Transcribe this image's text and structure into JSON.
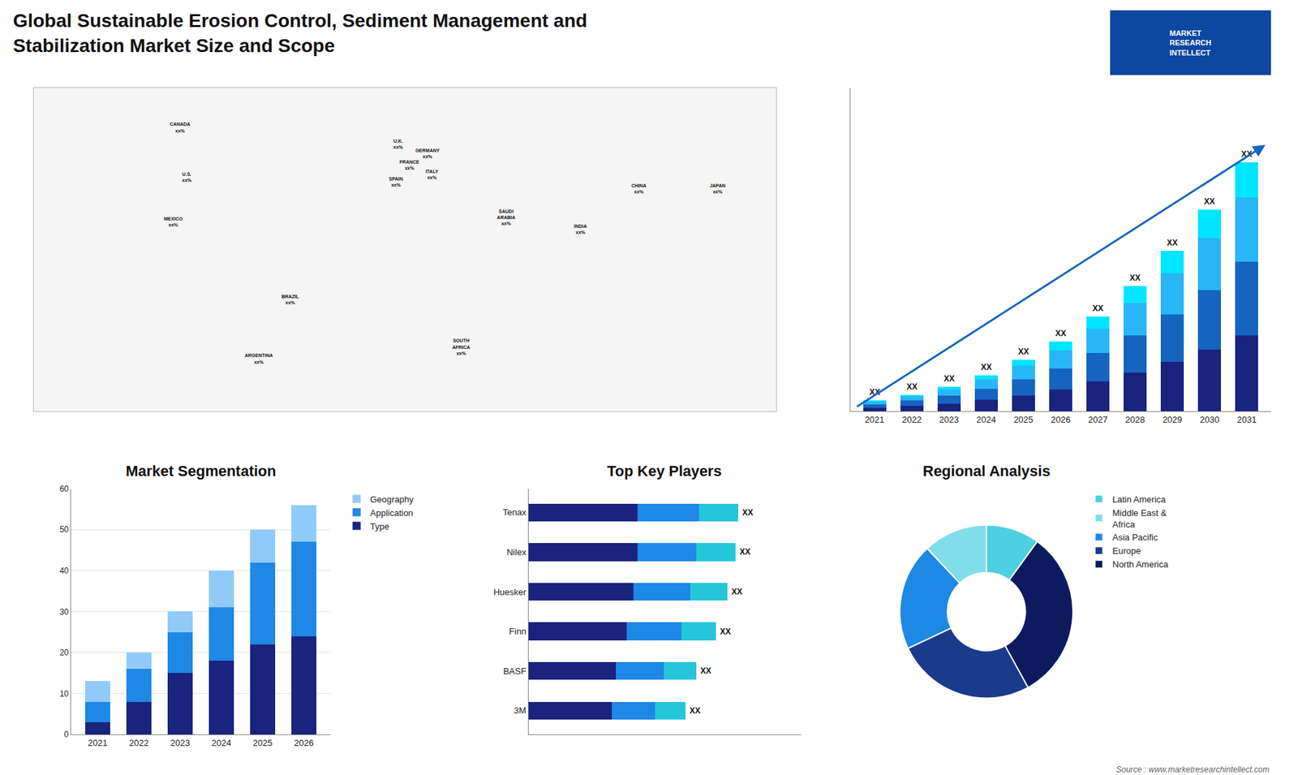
{
  "title": "Global Sustainable Erosion Control, Sediment Management and\nStabilization Market Size and Scope",
  "annotations": [
    {
      "text": "MARKET\nRESEARCH\nINTELLECT"
    },
    {
      "text": "Source : www.marketresearchintellect.com"
    }
  ],
  "chart_data": [
    {
      "type": "map",
      "xlim": [
        -165,
        165
      ],
      "ylim": [
        -57,
        80
      ],
      "xticks": [],
      "yticks": [],
      "tick_labels": false,
      "grid": false,
      "annotations": [
        {
          "text": "CANADA\nxx%",
          "x": -100,
          "y": 63
        },
        {
          "text": "U.S.\nxx%",
          "x": -97,
          "y": 42
        },
        {
          "text": "MEXICO\nxx%",
          "x": -103,
          "y": 23
        },
        {
          "text": "BRAZIL\nxx%",
          "x": -51,
          "y": -10
        },
        {
          "text": "ARGENTINA\nxx%",
          "x": -65,
          "y": -35
        },
        {
          "text": "U.K.\nxx%",
          "x": -3,
          "y": 56
        },
        {
          "text": "FRANCE\nxx%",
          "x": 2,
          "y": 47
        },
        {
          "text": "SPAIN\nxx%",
          "x": -4,
          "y": 40
        },
        {
          "text": "GERMANY\nxx%",
          "x": 10,
          "y": 52
        },
        {
          "text": "ITALY\nxx%",
          "x": 12,
          "y": 43
        },
        {
          "text": "SAUDI\nARABIA\nxx%",
          "x": 45,
          "y": 25
        },
        {
          "text": "SOUTH\nAFRICA\nxx%",
          "x": 25,
          "y": -30
        },
        {
          "text": "CHINA\nxx%",
          "x": 104,
          "y": 37
        },
        {
          "text": "INDIA\nxx%",
          "x": 78,
          "y": 20
        },
        {
          "text": "JAPAN\nxx%",
          "x": 139,
          "y": 37
        }
      ]
    },
    {
      "type": "bar",
      "stacked": true,
      "categories": [
        "2021",
        "2022",
        "2023",
        "2024",
        "2025",
        "2026",
        "2027",
        "2028",
        "2029",
        "2030",
        "2031"
      ],
      "series": [
        {
          "color": "#1a237e",
          "values": [
            1.0,
            1.5,
            2.2,
            3.2,
            4.5,
            6.2,
            8.5,
            11.0,
            14.0,
            17.5,
            21.5
          ]
        },
        {
          "color": "#1565c0",
          "values": [
            1.0,
            1.5,
            2.2,
            3.2,
            4.5,
            6.0,
            8.0,
            10.5,
            13.5,
            17.0,
            21.0
          ]
        },
        {
          "color": "#29b6f6",
          "values": [
            0.8,
            1.2,
            1.8,
            2.6,
            3.8,
            5.2,
            7.0,
            9.2,
            11.8,
            14.8,
            18.2
          ]
        },
        {
          "color": "#00e5ff",
          "values": [
            0.3,
            0.5,
            0.8,
            1.2,
            1.8,
            2.5,
            3.5,
            4.8,
            6.2,
            8.0,
            10.0
          ]
        }
      ],
      "ylim": [
        0,
        91.91
      ],
      "yticks": [],
      "tick_labels": "x",
      "grid": false,
      "annotations": [
        {
          "x": "2021",
          "text": "XX"
        },
        {
          "x": "2022",
          "text": "XX"
        },
        {
          "x": "2023",
          "text": "XX"
        },
        {
          "x": "2024",
          "text": "XX"
        },
        {
          "x": "2025",
          "text": "XX"
        },
        {
          "x": "2026",
          "text": "XX"
        },
        {
          "x": "2027",
          "text": "XX"
        },
        {
          "x": "2028",
          "text": "XX"
        },
        {
          "x": "2029",
          "text": "XX"
        },
        {
          "x": "2030",
          "text": "XX"
        },
        {
          "x": "2031",
          "text": "XX"
        }
      ]
    },
    {
      "type": "bar",
      "title": "Market Segmentation",
      "stacked": true,
      "categories": [
        "2021",
        "2022",
        "2023",
        "2024",
        "2025",
        "2026"
      ],
      "series": [
        {
          "name": "Type",
          "color": "#1a237e",
          "values": [
            3,
            8,
            15,
            18,
            22,
            24
          ]
        },
        {
          "name": "Application",
          "color": "#1e88e5",
          "values": [
            5,
            8,
            10,
            13,
            20,
            23
          ]
        },
        {
          "name": "Geography",
          "color": "#90caf9",
          "values": [
            5,
            4,
            5,
            9,
            8,
            9
          ]
        }
      ],
      "ylim": [
        0,
        60
      ],
      "yticks": [
        0,
        10,
        20,
        30,
        40,
        50,
        60
      ],
      "grid": true,
      "legend": "right"
    },
    {
      "type": "bar",
      "title": "Top Key Players",
      "orientation": "horizontal",
      "stacked": true,
      "categories": [
        "Tenax",
        "Nilex",
        "Huesker",
        "Finn",
        "BASF",
        "3M"
      ],
      "series": [
        {
          "color": "#1a237e",
          "values": [
            0.5,
            0.5,
            0.48,
            0.45,
            0.4,
            0.38
          ]
        },
        {
          "color": "#1e88e5",
          "values": [
            0.28,
            0.27,
            0.26,
            0.25,
            0.22,
            0.2
          ]
        },
        {
          "color": "#26c6da",
          "values": [
            0.18,
            0.18,
            0.17,
            0.16,
            0.15,
            0.14
          ]
        }
      ],
      "xlim": [
        0,
        1.248
      ],
      "xticks": [],
      "tick_labels": "y",
      "grid": false,
      "annotations": [
        {
          "x": "Tenax",
          "text": "XX"
        },
        {
          "x": "Nilex",
          "text": "XX"
        },
        {
          "x": "Huesker",
          "text": "XX"
        },
        {
          "x": "Finn",
          "text": "XX"
        },
        {
          "x": "BASF",
          "text": "XX"
        },
        {
          "x": "3M",
          "text": "XX"
        }
      ]
    },
    {
      "type": "pie",
      "title": "Regional Analysis",
      "categories": [
        "Latin America",
        "Middle East &\nAfrica",
        "Asia Pacific",
        "Europe",
        "North America"
      ],
      "values": [
        10,
        12,
        20,
        26,
        32
      ],
      "colors": [
        "#4dd0e1",
        "#80deea",
        "#1e88e5",
        "#1a3a8c",
        "#0d1b5e"
      ],
      "legend": "right"
    }
  ]
}
